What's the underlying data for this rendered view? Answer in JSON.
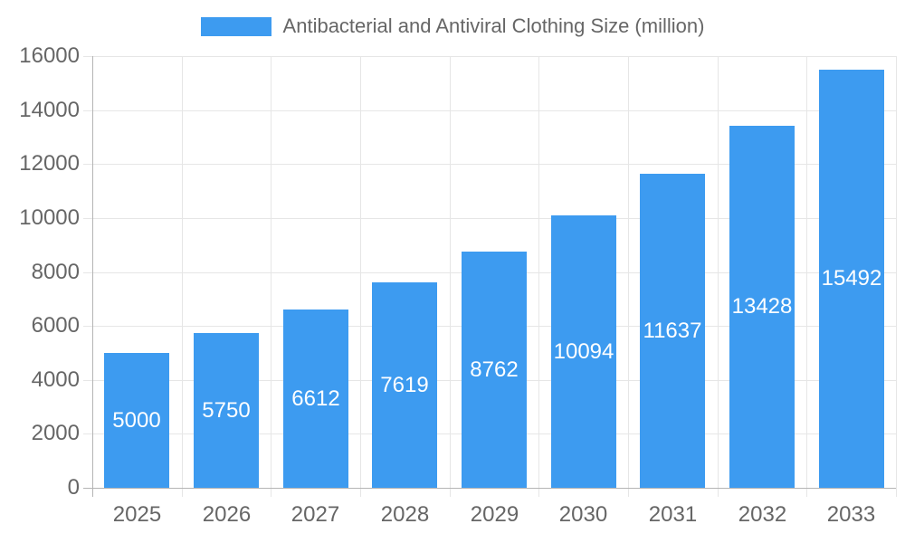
{
  "chart_data": {
    "type": "bar",
    "title": "Antibacterial and Antiviral Clothing Size (million)",
    "series_name": "Antibacterial and Antiviral Clothing Size (million)",
    "categories": [
      "2025",
      "2026",
      "2027",
      "2028",
      "2029",
      "2030",
      "2031",
      "2032",
      "2033"
    ],
    "values": [
      5000,
      5750,
      6612,
      7619,
      8762,
      10094,
      11637,
      13428,
      15492
    ],
    "xlabel": "",
    "ylabel": "",
    "ylim": [
      0,
      16000
    ],
    "ytick_step": 2000,
    "ytick_labels": [
      "0",
      "2000",
      "4000",
      "6000",
      "8000",
      "10000",
      "12000",
      "14000",
      "16000"
    ],
    "grid": true,
    "legend_position": "top",
    "value_label_position": "inside-center",
    "colors": {
      "bar": "#3D9BF0",
      "value_label": "#FFFFFF",
      "axis_text": "#666666",
      "legend_text": "#666666",
      "gridline": "#E6E6E6",
      "axis_line": "#B4B4B4",
      "background": "#FFFFFF"
    }
  }
}
